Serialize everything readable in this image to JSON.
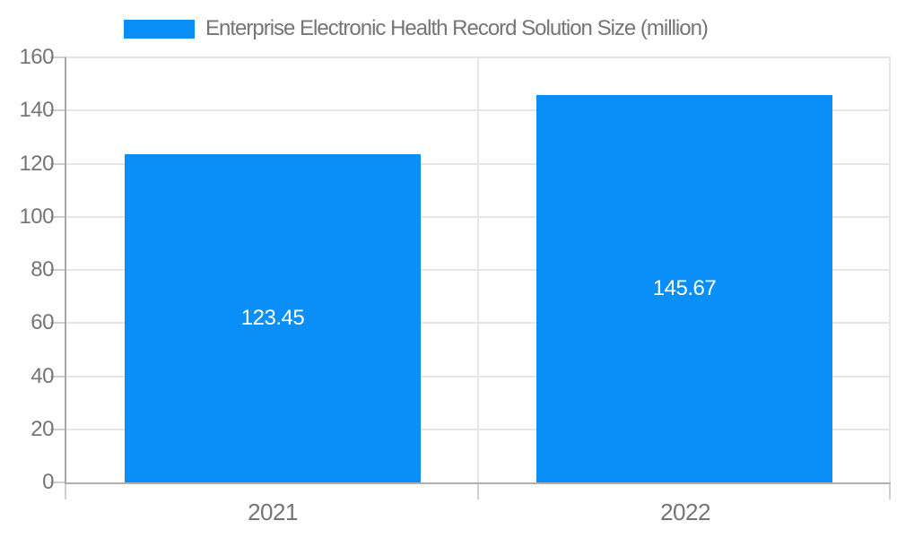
{
  "chart_data": {
    "type": "bar",
    "title": "Enterprise Electronic Health Record Solution Size (million)",
    "categories": [
      "2021",
      "2022"
    ],
    "values": [
      123.45,
      145.67
    ],
    "value_labels": [
      "123.45",
      "145.67"
    ],
    "xlabel": "",
    "ylabel": "",
    "ylim": [
      0,
      160
    ],
    "yticks": [
      0,
      20,
      40,
      60,
      80,
      100,
      120,
      140,
      160
    ],
    "grid": true,
    "legend_position": "top",
    "bar_color": "#0a8ff9",
    "value_label_color": "#ffffff",
    "axis_text_color": "#757575",
    "grid_color": "#e6e6e6",
    "tick_color": "#cfcfcf",
    "axis_line_color": "#a8a8a8",
    "baseline_color": "#b0b0b0",
    "background_color": "#ffffff"
  }
}
